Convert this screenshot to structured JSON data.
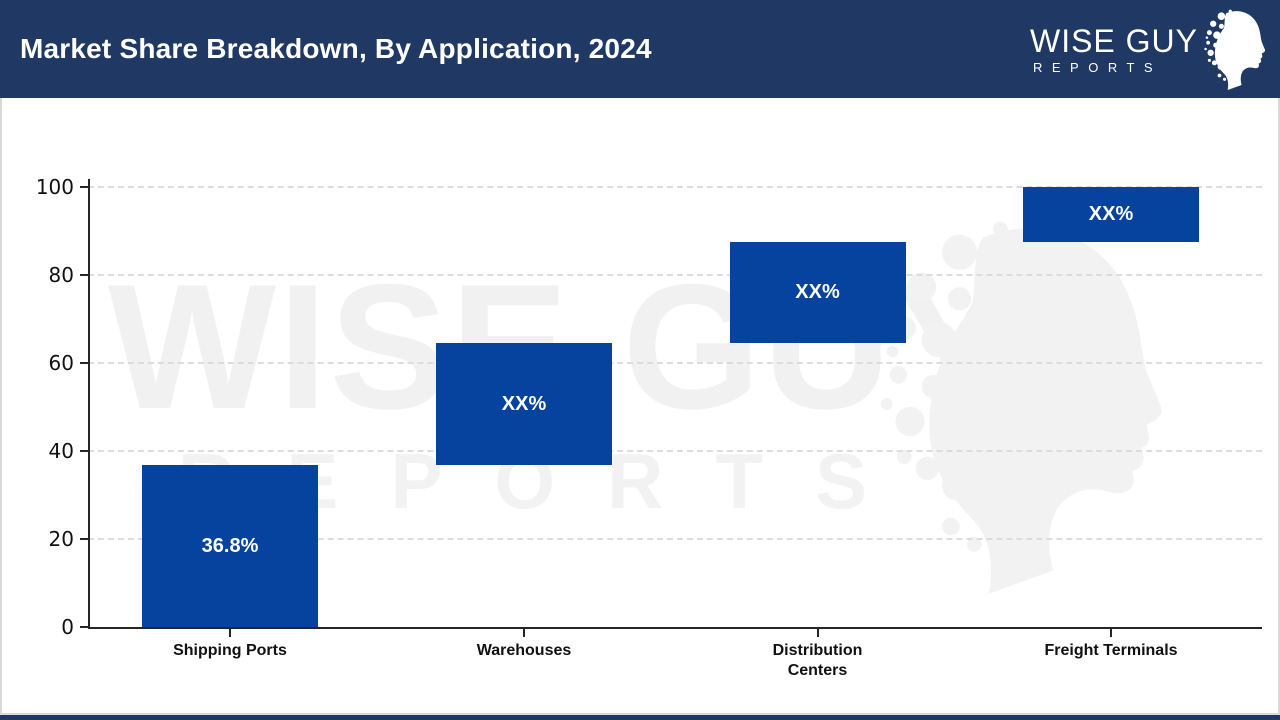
{
  "header": {
    "title": "Market Share Breakdown, By Application, 2024",
    "logo": {
      "line1": "WISE GUY",
      "line2": "REPORTS"
    }
  },
  "watermark": {
    "line1": "WISE GUY",
    "line2": "REPORTS"
  },
  "colors": {
    "header_bg": "#203864",
    "bar_color": "#05439e",
    "bar_label_color": "#ffffff",
    "grid_color": "#dcdcdc",
    "axis_color": "#262626",
    "watermark_color": "#f1f1f1"
  },
  "chart_data": {
    "type": "bar",
    "subtype": "waterfall",
    "title": "Market Share Breakdown, By Application, 2024",
    "categories": [
      "Shipping Ports",
      "Warehouses",
      "Distribution Centers",
      "Freight Terminals"
    ],
    "bars": [
      {
        "category": "Shipping Ports",
        "start": 0,
        "end": 36.8,
        "value": 36.8,
        "label": "36.8%",
        "tick_lines": [
          "Shipping Ports"
        ]
      },
      {
        "category": "Warehouses",
        "start": 36.8,
        "end": 64.5,
        "value": 27.7,
        "label": "XX%",
        "tick_lines": [
          "Warehouses"
        ]
      },
      {
        "category": "Distribution Centers",
        "start": 64.5,
        "end": 87.5,
        "value": 23.0,
        "label": "XX%",
        "tick_lines": [
          "Distribution",
          "Centers"
        ]
      },
      {
        "category": "Freight Terminals",
        "start": 87.5,
        "end": 100,
        "value": 12.5,
        "label": "XX%",
        "tick_lines": [
          "Freight Terminals"
        ]
      }
    ],
    "xlabel": "",
    "ylabel": "",
    "ylim": [
      0,
      100
    ],
    "yticks": [
      0,
      20,
      40,
      60,
      80,
      100
    ],
    "grid": "horizontal dashed",
    "legend": "none"
  }
}
